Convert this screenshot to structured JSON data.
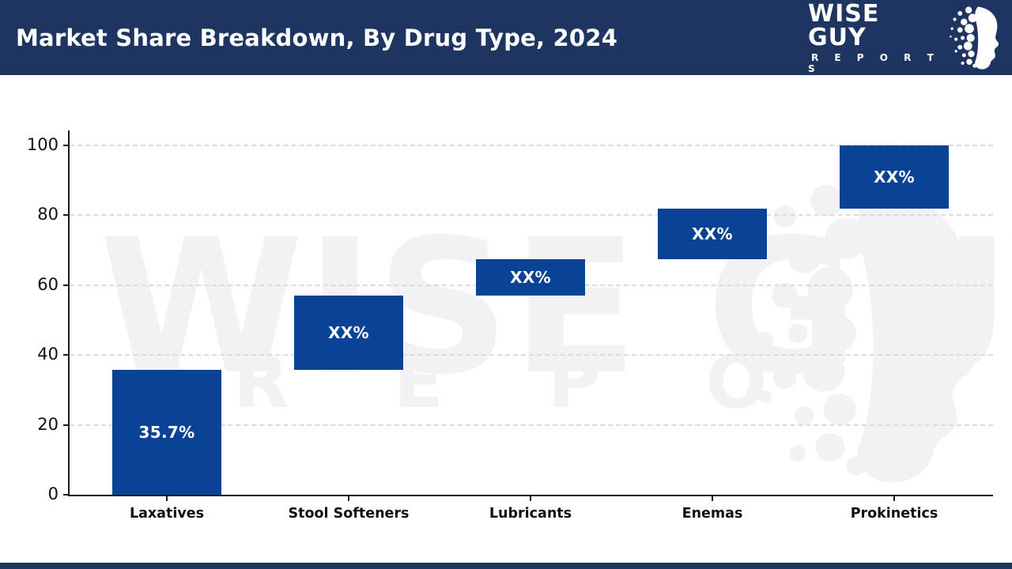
{
  "header": {
    "title": "Market Share Breakdown, By Drug Type, 2024",
    "logo": {
      "line1": "WISE GUY",
      "line2": "R E P O R T S"
    }
  },
  "watermark": {
    "line1": "WISE GUY",
    "line2": "R E P O R T S"
  },
  "colors": {
    "header_bg": "#1e3562",
    "bar": "#0a4396",
    "bar_label": "#ffffff",
    "grid": "#dcdcdc",
    "watermark": "#f2f2f4"
  },
  "chart_data": {
    "type": "bar",
    "subtype": "waterfall",
    "title": "Market Share Breakdown, By Drug Type, 2024",
    "categories": [
      "Laxatives",
      "Stool Softeners",
      "Lubricants",
      "Enemas",
      "Prokinetics"
    ],
    "segments": [
      {
        "category": "Laxatives",
        "start": 0,
        "end": 35.7,
        "label": "35.7%"
      },
      {
        "category": "Stool Softeners",
        "start": 35.7,
        "end": 57,
        "label": "XX%"
      },
      {
        "category": "Lubricants",
        "start": 57,
        "end": 67.5,
        "label": "XX%"
      },
      {
        "category": "Enemas",
        "start": 67.5,
        "end": 82,
        "label": "XX%"
      },
      {
        "category": "Prokinetics",
        "start": 82,
        "end": 100,
        "label": "XX%"
      }
    ],
    "yticks": [
      0,
      20,
      40,
      60,
      80,
      100
    ],
    "ylim": [
      0,
      105
    ],
    "xlabel": "",
    "ylabel": "",
    "grid": "horizontal-dashed",
    "legend": "none",
    "bar_color": "#0a4396",
    "bar_label_color": "#ffffff"
  }
}
